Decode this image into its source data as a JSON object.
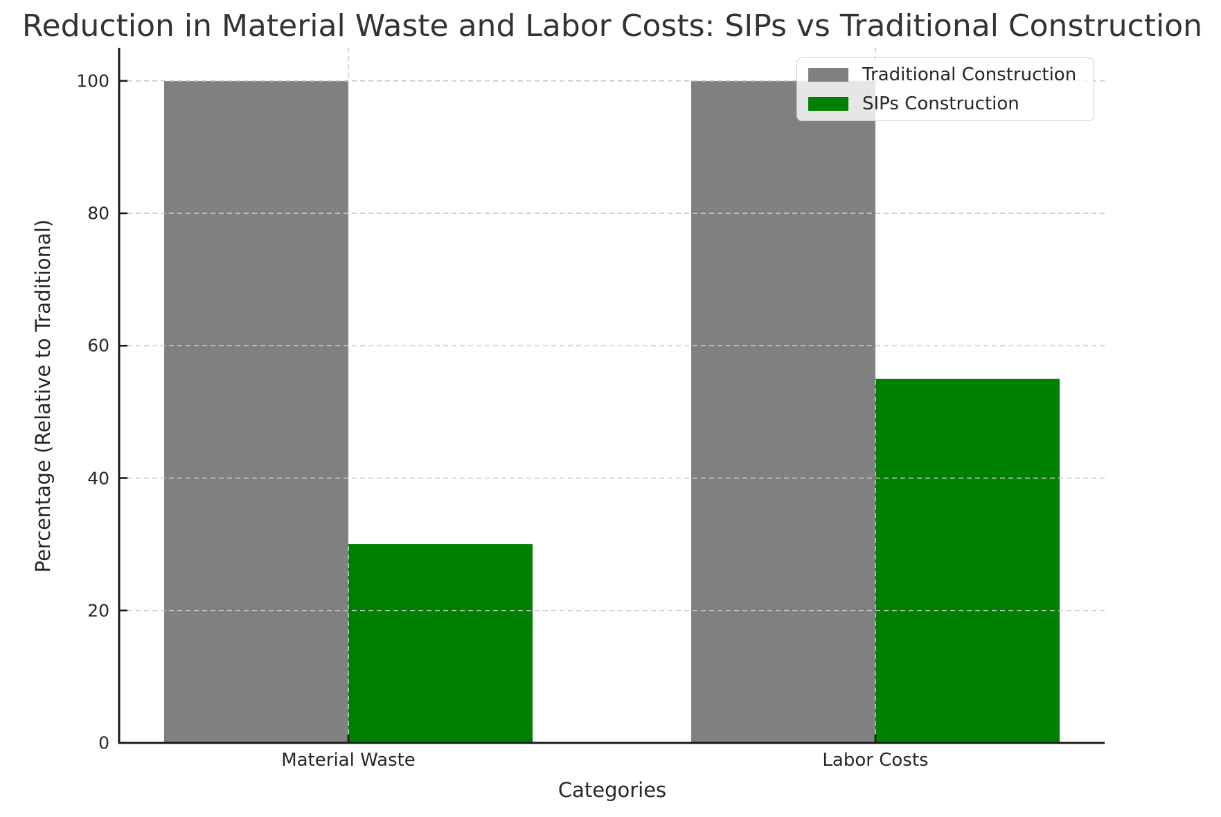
{
  "chart_data": {
    "type": "bar",
    "title": "Reduction in Material Waste and Labor Costs: SIPs vs Traditional Construction",
    "xlabel": "Categories",
    "ylabel": "Percentage (Relative to Traditional)",
    "categories": [
      "Material Waste",
      "Labor Costs"
    ],
    "series": [
      {
        "name": "Traditional Construction",
        "color": "#808080",
        "values": [
          100,
          100
        ]
      },
      {
        "name": "SIPs Construction",
        "color": "#008000",
        "values": [
          30,
          55
        ]
      }
    ],
    "ylim": [
      0,
      105
    ],
    "yticks": [
      0,
      20,
      40,
      60,
      80,
      100
    ],
    "grid": "dashed horizontal and vertical gridlines drawn above bars",
    "legend_position": "upper right"
  },
  "style_colors": {
    "grid": "#c9c9c9",
    "spine": "#1a1a1a",
    "text": "#262626",
    "title_text": "#333333",
    "legend_border": "#cccccc",
    "background": "#ffffff"
  }
}
